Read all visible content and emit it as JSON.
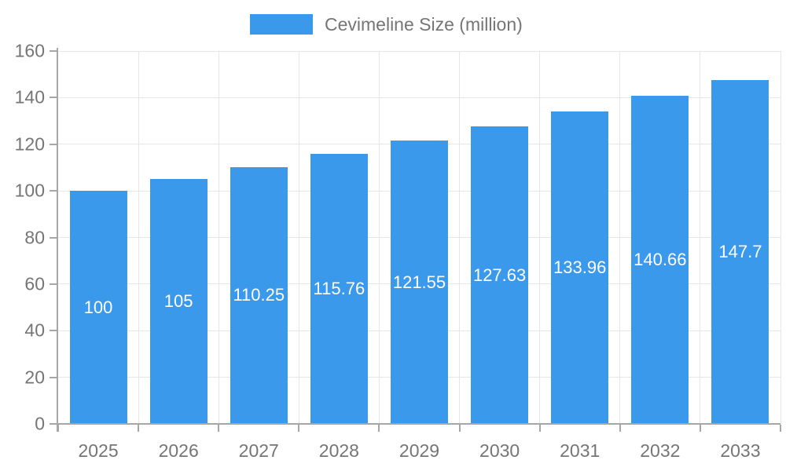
{
  "legend": {
    "label": "Cevimeline Size (million)"
  },
  "chart_data": {
    "type": "bar",
    "title": "Cevimeline Size (million)",
    "xlabel": "",
    "ylabel": "",
    "categories": [
      "2025",
      "2026",
      "2027",
      "2028",
      "2029",
      "2030",
      "2031",
      "2032",
      "2033"
    ],
    "series": [
      {
        "name": "Cevimeline Size (million)",
        "values": [
          100,
          105,
          110.25,
          115.76,
          121.55,
          127.63,
          133.96,
          140.66,
          147.7
        ],
        "labels": [
          "100",
          "105",
          "110.25",
          "115.76",
          "121.55",
          "127.63",
          "133.96",
          "140.66",
          "147.7"
        ]
      }
    ],
    "ylim": [
      0,
      160
    ],
    "yticks": [
      0,
      20,
      40,
      60,
      80,
      100,
      120,
      140,
      160
    ],
    "ytick_labels": [
      "0",
      "20",
      "40",
      "60",
      "80",
      "100",
      "120",
      "140",
      "160"
    ],
    "grid": true,
    "legend_position": "top",
    "colors": {
      "bar": "#3b99ec",
      "axis": "#a6a6a6",
      "grid": "#e6e6e6",
      "text": "#757575",
      "bar_label": "#ffffff",
      "background": "#ffffff"
    }
  }
}
